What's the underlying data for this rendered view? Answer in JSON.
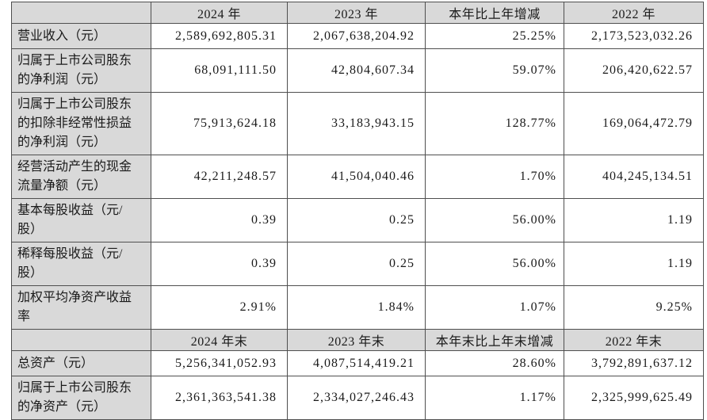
{
  "colors": {
    "header_bg": "#d9d9d9",
    "label_bg": "#d9d9d9",
    "cell_bg": "#ffffff",
    "border": "#4f4f4f",
    "text": "#1a1a1a"
  },
  "table": {
    "period_header": {
      "corner": "",
      "columns": [
        "2024 年",
        "2023 年",
        "本年比上年增减",
        "2022 年"
      ]
    },
    "annual_rows": [
      {
        "label": "营业收入（元）",
        "values": [
          "2,589,692,805.31",
          "2,067,638,204.92",
          "25.25%",
          "2,173,523,032.26"
        ]
      },
      {
        "label": "归属于上市公司股东的净利润（元）",
        "values": [
          "68,091,111.50",
          "42,804,607.34",
          "59.07%",
          "206,420,622.57"
        ]
      },
      {
        "label": "归属于上市公司股东的扣除非经常性损益的净利润（元）",
        "values": [
          "75,913,624.18",
          "33,183,943.15",
          "128.77%",
          "169,064,472.79"
        ]
      },
      {
        "label": "经营活动产生的现金流量净额（元）",
        "values": [
          "42,211,248.57",
          "41,504,040.46",
          "1.70%",
          "404,245,134.51"
        ]
      },
      {
        "label": "基本每股收益（元/股）",
        "values": [
          "0.39",
          "0.25",
          "56.00%",
          "1.19"
        ]
      },
      {
        "label": "稀释每股收益（元/股）",
        "values": [
          "0.39",
          "0.25",
          "56.00%",
          "1.19"
        ]
      },
      {
        "label": "加权平均净资产收益率",
        "values": [
          "2.91%",
          "1.84%",
          "1.07%",
          "9.25%"
        ]
      }
    ],
    "period_end_header": {
      "corner": "",
      "columns": [
        "2024 年末",
        "2023 年末",
        "本年末比上年末增减",
        "2022 年末"
      ]
    },
    "period_end_rows": [
      {
        "label": "总资产（元）",
        "values": [
          "5,256,341,052.93",
          "4,087,514,419.21",
          "28.60%",
          "3,792,891,637.12"
        ]
      },
      {
        "label": "归属于上市公司股东的净资产（元）",
        "values": [
          "2,361,363,541.38",
          "2,334,027,246.43",
          "1.17%",
          "2,325,999,625.49"
        ]
      }
    ]
  }
}
